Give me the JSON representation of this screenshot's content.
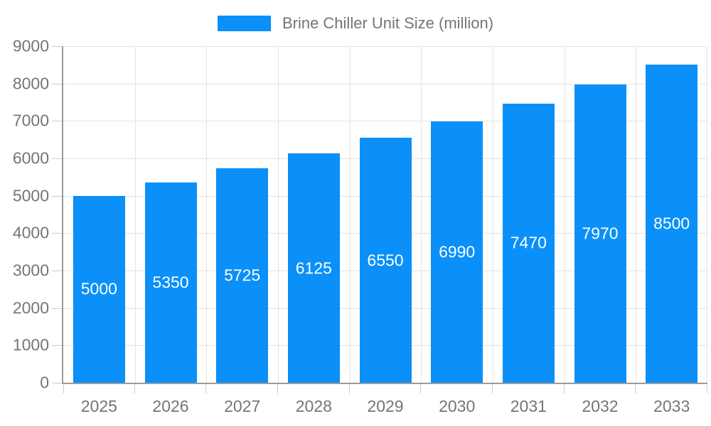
{
  "chart_data": {
    "type": "bar",
    "title": "Brine Chiller Unit Size (million)",
    "categories": [
      "2025",
      "2026",
      "2027",
      "2028",
      "2029",
      "2030",
      "2031",
      "2032",
      "2033"
    ],
    "values": [
      5000,
      5350,
      5725,
      6125,
      6550,
      6990,
      7470,
      7970,
      8500
    ],
    "value_labels": [
      "5000",
      "5350",
      "5725",
      "6125",
      "6550",
      "6990",
      "7470",
      "7970",
      "8500"
    ],
    "xlabel": "",
    "ylabel": "",
    "ylim": [
      0,
      9000
    ],
    "ytick_step": 1000,
    "y_tick_labels": [
      "0",
      "1000",
      "2000",
      "3000",
      "4000",
      "5000",
      "6000",
      "7000",
      "8000",
      "9000"
    ],
    "grid": true,
    "legend_position": "top-center"
  },
  "colors": {
    "bar": "#0a90f8",
    "grid": "#e3e3e3",
    "axis": "#9b9b9b",
    "tick": "#cccccc",
    "axis_text": "#757575",
    "value_text": "#ffffff",
    "background": "#ffffff"
  }
}
